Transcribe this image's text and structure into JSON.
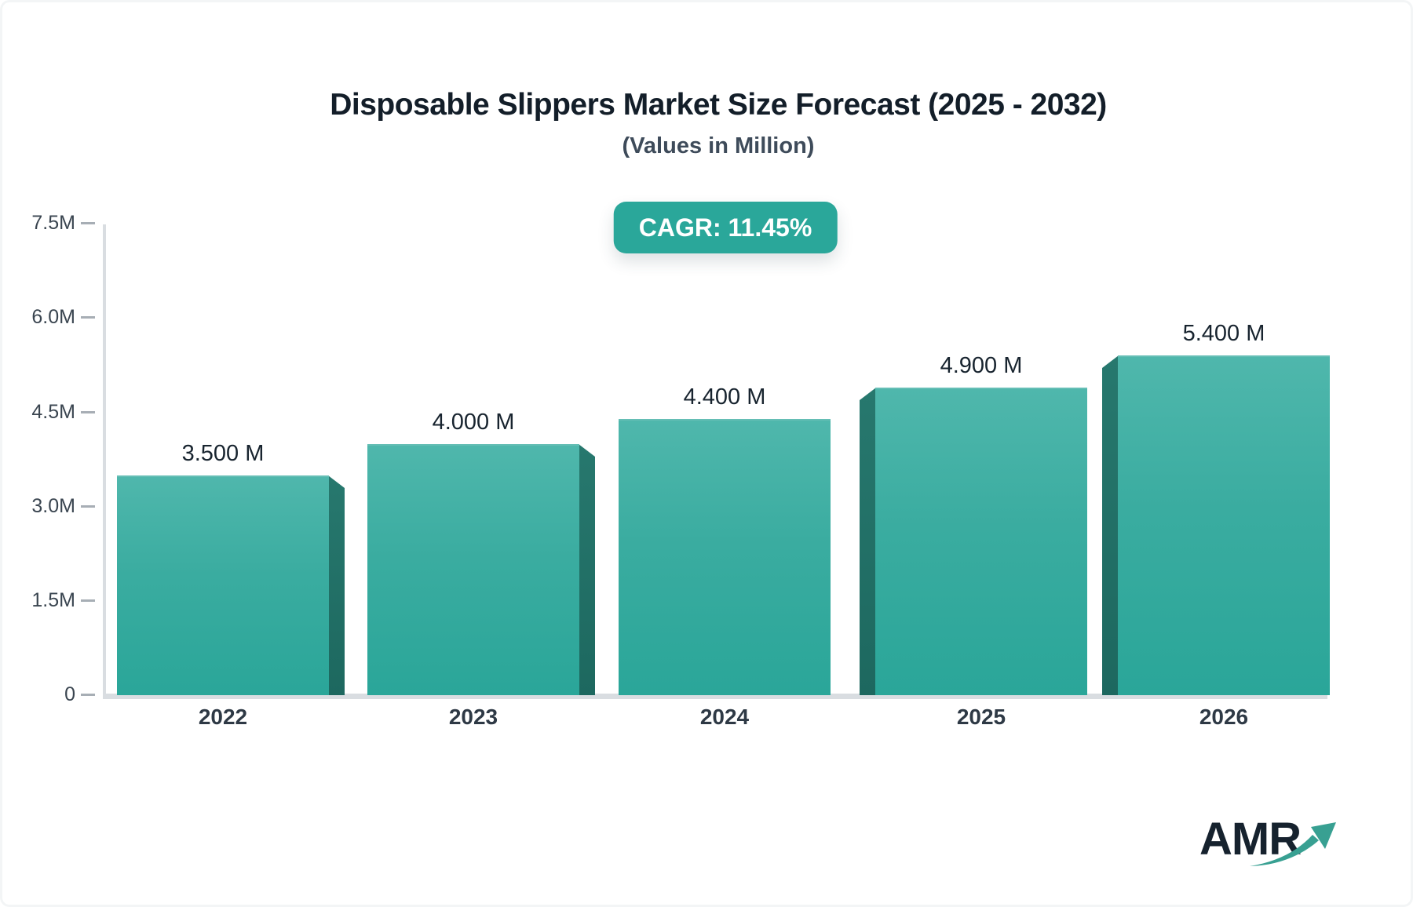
{
  "title": "Disposable Slippers Market Size Forecast (2025 - 2032)",
  "subtitle": "(Values in Million)",
  "badge": {
    "label": "CAGR: 11.45%"
  },
  "logo": {
    "text": "AMR",
    "arrow_icon": "trending-up-arrow"
  },
  "colors": {
    "accent_teal": "#2aa79a",
    "bar_front_top": "#4fb7ac",
    "bar_front_bottom": "#2aa699",
    "bar_bevel": "#206e65",
    "axis_gray": "#d9dde1",
    "title_text": "#131e29",
    "subtitle_text": "#3e4b5a",
    "badge_text": "#ffffff",
    "logo_text": "#16222e",
    "logo_arrow": "#38a092"
  },
  "chart_data": {
    "type": "bar",
    "categories": [
      "2022",
      "2023",
      "2024",
      "2025",
      "2026"
    ],
    "values": [
      3.5,
      4.0,
      4.4,
      4.9,
      5.4
    ],
    "value_labels": [
      "3.500 M",
      "4.000 M",
      "4.400 M",
      "4.900 M",
      "5.400 M"
    ],
    "unit": "Million",
    "title": "Disposable Slippers Market Size Forecast (2025 - 2032)",
    "subtitle": "(Values in Million)",
    "annotation": "CAGR: 11.45%",
    "xlabel": "",
    "ylabel": "",
    "ylim": [
      0,
      7.5
    ],
    "y_ticks": [
      {
        "label": "0",
        "value": 0
      },
      {
        "label": "1.5M",
        "value": 1.5
      },
      {
        "label": "3.0M",
        "value": 3.0
      },
      {
        "label": "4.5M",
        "value": 4.5
      },
      {
        "label": "6.0M",
        "value": 6.0
      },
      {
        "label": "7.5M",
        "value": 7.5
      }
    ],
    "grid": false,
    "legend": "none",
    "bar_style": {
      "effect": "pseudo-3d-bevel",
      "bevel_sides": [
        "right",
        "right",
        "none",
        "left",
        "left"
      ]
    }
  }
}
